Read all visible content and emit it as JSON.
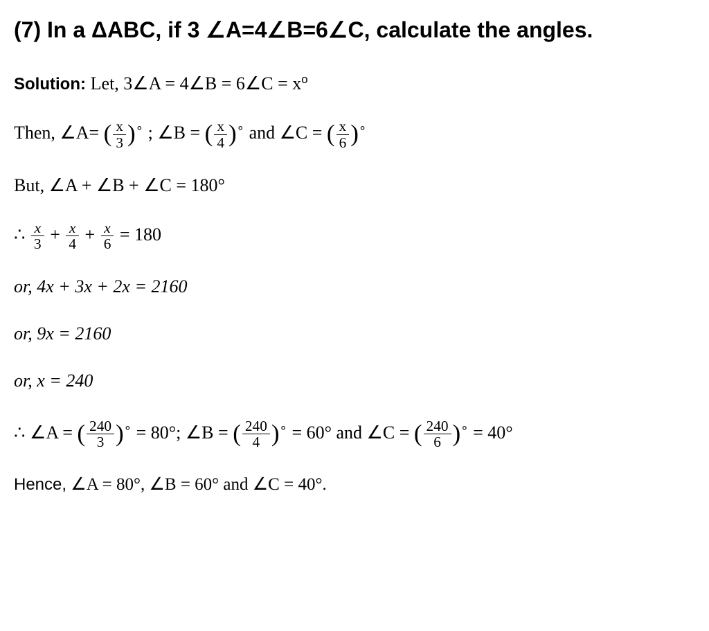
{
  "question": {
    "number": "(7)",
    "text_parts": {
      "p1": "In a ΔABC, if 3 ∠A=4∠B=6∠C, calculate the angles."
    }
  },
  "solution": {
    "label": "Solution:",
    "let_text": "Let, 3∠A = 4∠B = 6∠C = x",
    "let_deg": "o",
    "then_prefix": "Then, ∠A=",
    "then_mid1": " ; ∠B = ",
    "then_mid2": " and ∠C = ",
    "fracA": {
      "num": "x",
      "den": "3"
    },
    "fracB": {
      "num": "x",
      "den": "4"
    },
    "fracC": {
      "num": "x",
      "den": "6"
    },
    "deg_small": "∘",
    "but_line": "But, ∠A + ∠B + ∠C = 180°",
    "therefore_sym": "∴",
    "eq_frac_plus1": "+",
    "eq_frac_plus2": "+",
    "eq_frac_rhs": "= 180",
    "ix": {
      "num": "x",
      "den": "3"
    },
    "iy": {
      "num": "x",
      "den": "4"
    },
    "iz": {
      "num": "x",
      "den": "6"
    },
    "line_or1": "or, 4x + 3x + 2x = 2160",
    "line_or2": "or, 9x = 2160",
    "line_or3": "or, x = 240",
    "result_prefix": "∴ ∠A = ",
    "rf1": {
      "num": "240",
      "den": "3"
    },
    "result_a": " = 80°;  ∠B = ",
    "rf2": {
      "num": "240",
      "den": "4"
    },
    "result_b": " = 60° and ∠C = ",
    "rf3": {
      "num": "240",
      "den": "6"
    },
    "result_c": " = 40°",
    "hence_label": "Hence,",
    "hence_rest": " ∠A = 80°, ∠B = 60° and ∠C = 40°."
  },
  "style": {
    "bg": "#ffffff",
    "text_color": "#000000",
    "question_fontsize": 32,
    "body_fontsize": 24,
    "math_fontsize": 26
  }
}
